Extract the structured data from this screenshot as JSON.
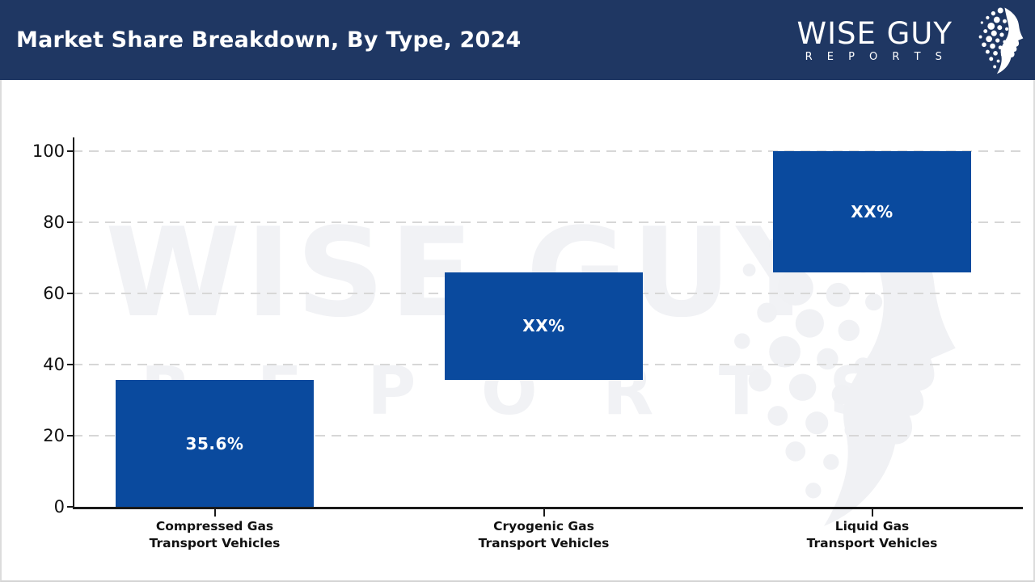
{
  "header": {
    "title": "Market Share Breakdown, By Type, 2024",
    "logo": {
      "name": "WISE GUY",
      "sub": "R E P O R T S"
    }
  },
  "watermark": {
    "line1": "WISE GUY",
    "line2": "R E P O R T S"
  },
  "chart_data": {
    "type": "bar",
    "variant": "stacked-waterfall",
    "title": "Market Share Breakdown, By Type, 2024",
    "categories": [
      [
        "Compressed Gas",
        "Transport Vehicles"
      ],
      [
        "Cryogenic Gas",
        "Transport Vehicles"
      ],
      [
        "Liquid Gas",
        "Transport Vehicles"
      ]
    ],
    "bars": [
      {
        "start": 0,
        "end": 35.6,
        "label": "35.6%"
      },
      {
        "start": 35.6,
        "end": 66,
        "label": "XX%"
      },
      {
        "start": 66,
        "end": 100,
        "label": "XX%"
      }
    ],
    "yticks": [
      0,
      20,
      40,
      60,
      80,
      100
    ],
    "ylim": [
      0,
      104
    ],
    "xlabel": "",
    "ylabel": "",
    "grid": "horizontal-dashed",
    "legend": "none"
  },
  "colors": {
    "header_bg": "#1f3763",
    "bar": "#0a4a9e",
    "bar_label": "#ffffff",
    "axis": "#1a1a1a",
    "grid": "#d7d7d7",
    "watermark": "#f1f2f5",
    "page_border": "#dcdcdc"
  }
}
